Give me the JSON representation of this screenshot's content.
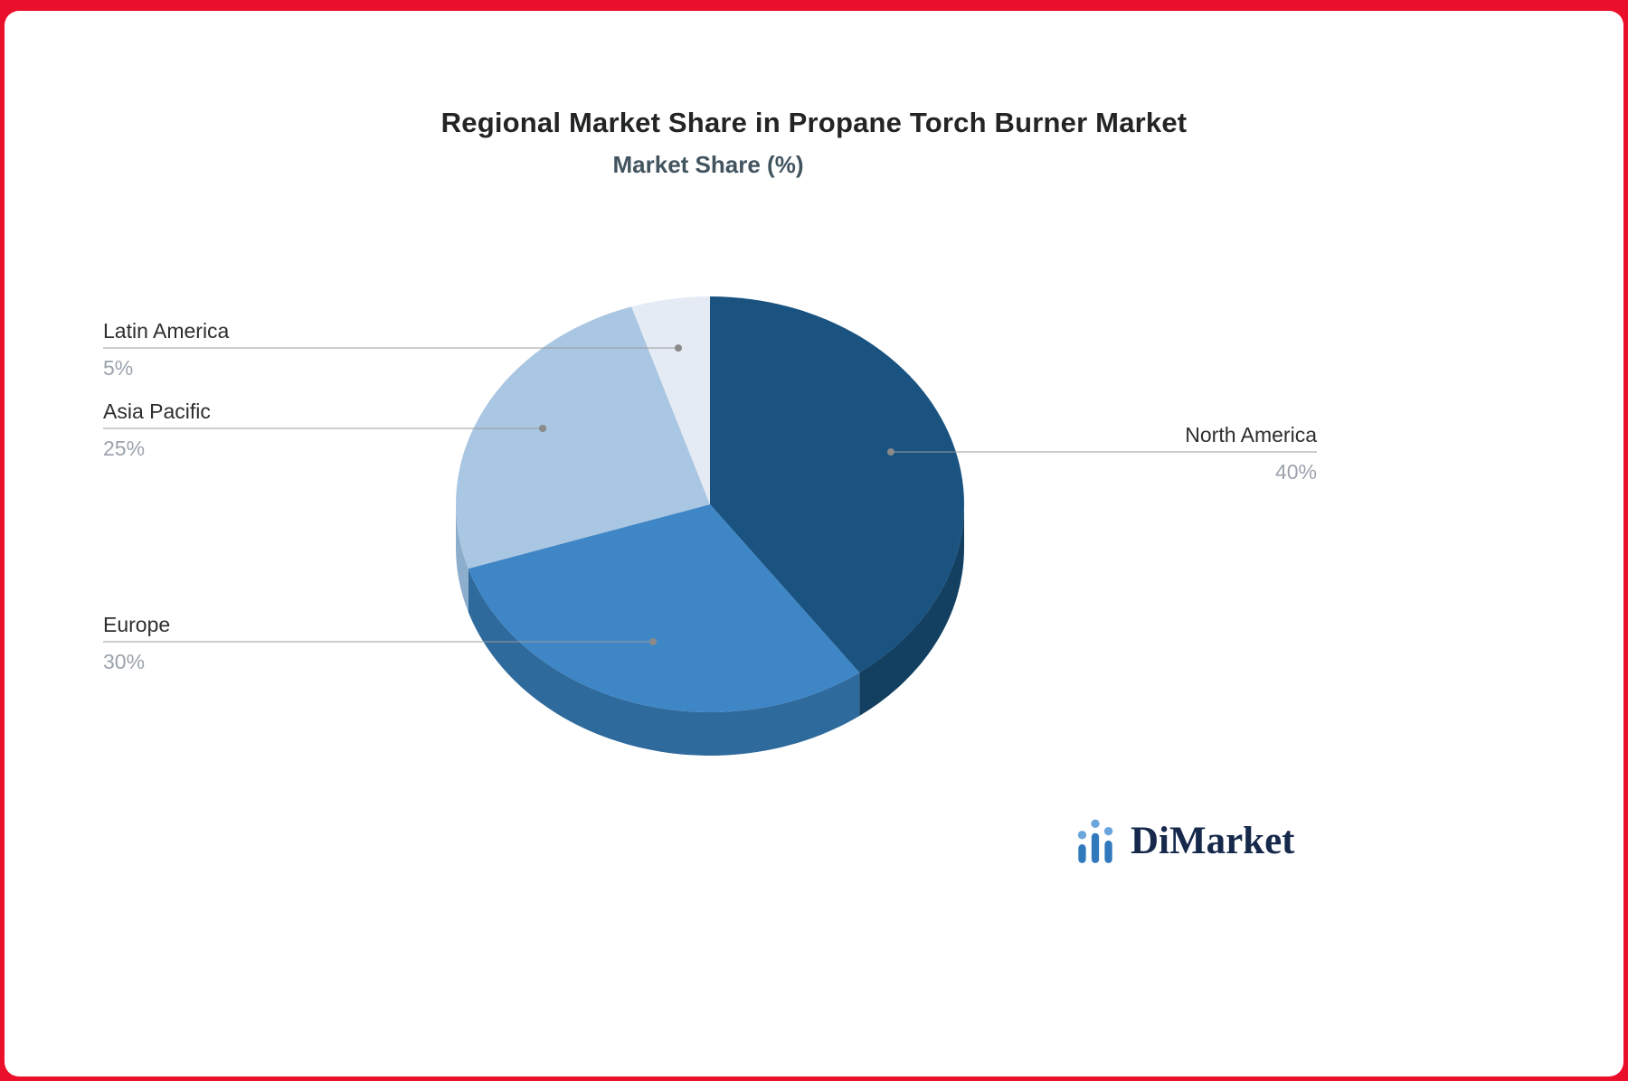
{
  "page": {
    "frame_color": "#ea0f2b",
    "background": "#ffffff"
  },
  "header": {
    "title": "Regional Market Share in Propane Torch Burner Market",
    "subtitle": "Market Share (%)"
  },
  "chart_data": {
    "type": "pie",
    "style": "3d",
    "title": "Regional Market Share in Propane Torch Burner Market",
    "subtitle": "Market Share (%)",
    "unit": "%",
    "direction": "clockwise",
    "start_angle_deg": 0,
    "labels": [
      "North America",
      "Europe",
      "Asia Pacific",
      "Latin America"
    ],
    "values": [
      40,
      30,
      25,
      5
    ],
    "colors": [
      "#1a5380",
      "#3e86c6",
      "#a9c6e2",
      "#e4ebf4"
    ],
    "side_colors": [
      "#133f61",
      "#2f6a9c",
      "#8cadcc",
      "#c9d6e5"
    ],
    "legend_position": "none",
    "label_style": "callout-lines",
    "callout_line_color": "#9b9b9b",
    "callout_dot_color": "#8a8a8a"
  },
  "branding": {
    "logo_text": "DiMarket",
    "logo_icon": "bar-chart-icon",
    "logo_text_color": "#16294b",
    "logo_icon_color": "#3179bd"
  }
}
